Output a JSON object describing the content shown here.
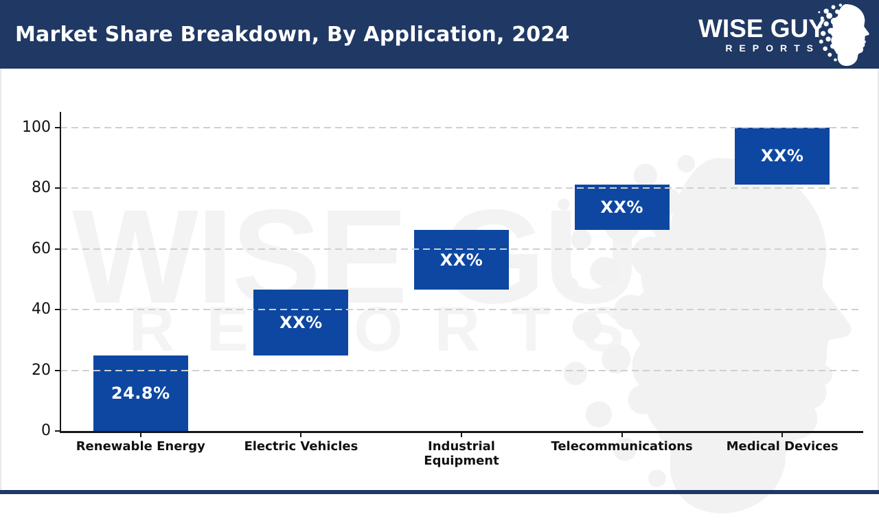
{
  "header": {
    "title": "Market Share Breakdown, By Application, 2024",
    "logo": {
      "name": "WISE GUY",
      "tagline": "REPORTS"
    }
  },
  "watermark": {
    "name": "WISE GUY",
    "tagline": "REPORTS"
  },
  "chart_data": {
    "type": "bar",
    "subtype": "floating-waterfall",
    "title": "Market Share Breakdown, By Application, 2024",
    "categories": [
      "Renewable Energy",
      "Electric Vehicles",
      "Industrial Equipment",
      "Telecommunications",
      "Medical Devices"
    ],
    "category_display_lines": [
      [
        "Renewable Energy"
      ],
      [
        "Electric Vehicles"
      ],
      [
        "Industrial",
        "Equipment"
      ],
      [
        "Telecommunications"
      ],
      [
        "Medical Devices"
      ]
    ],
    "bars": [
      {
        "category": "Renewable Energy",
        "start": 0,
        "end": 24.8,
        "label": "24.8%"
      },
      {
        "category": "Electric Vehicles",
        "start": 24.8,
        "end": 46.5,
        "label": "XX%"
      },
      {
        "category": "Industrial Equipment",
        "start": 46.5,
        "end": 66.2,
        "label": "XX%"
      },
      {
        "category": "Telecommunications",
        "start": 66.2,
        "end": 81.3,
        "label": "XX%"
      },
      {
        "category": "Medical Devices",
        "start": 81.3,
        "end": 100,
        "label": "XX%"
      }
    ],
    "y_axis": {
      "min": 0,
      "max": 100,
      "ticks": [
        0,
        20,
        40,
        60,
        80,
        100
      ]
    },
    "x_label": "",
    "y_label": "",
    "grid": "horizontal-dashed",
    "legend": "none",
    "colors": {
      "bar": "#0d47a1",
      "bar_label": "#ffffff",
      "header_bg": "#1f3864",
      "footer_bg": "#1f3864",
      "grid": "#cfcfcf",
      "axis": "#151515",
      "watermark": "#f2f2f2"
    }
  }
}
